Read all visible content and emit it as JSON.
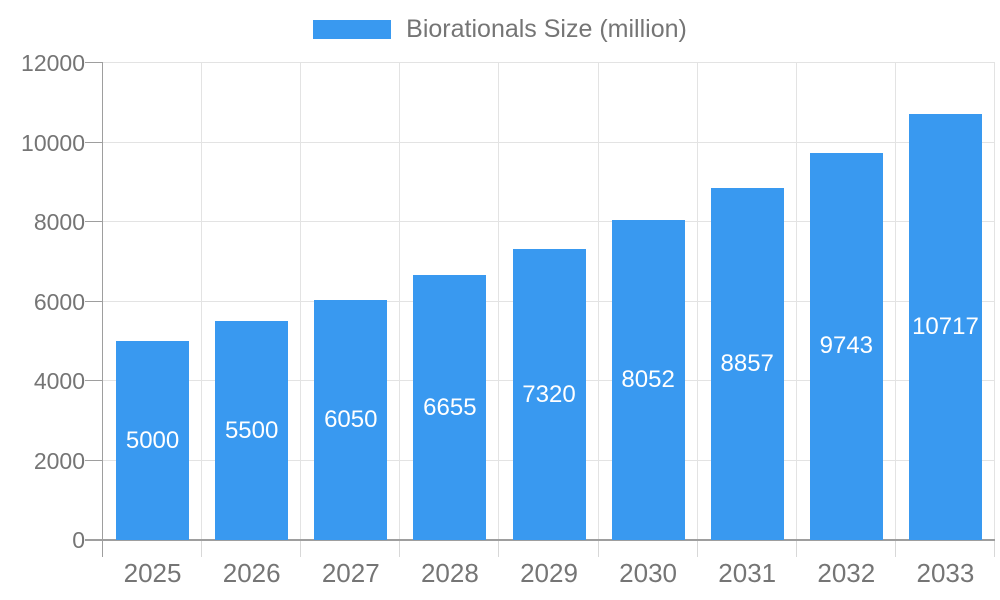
{
  "legend": {
    "label": "Biorationals Size (million)",
    "swatch_color": "#3999F0"
  },
  "chart_data": {
    "type": "bar",
    "title": "",
    "xlabel": "",
    "ylabel": "",
    "categories": [
      "2025",
      "2026",
      "2027",
      "2028",
      "2029",
      "2030",
      "2031",
      "2032",
      "2033"
    ],
    "series": [
      {
        "name": "Biorationals Size (million)",
        "values": [
          5000,
          5500,
          6050,
          6655,
          7320,
          8052,
          8857,
          9743,
          10717
        ]
      }
    ],
    "value_labels": [
      "5000",
      "5500",
      "6050",
      "6655",
      "7320",
      "8052",
      "8857",
      "9743",
      "10717"
    ],
    "ylim": [
      0,
      12000
    ],
    "yticks": [
      0,
      2000,
      4000,
      6000,
      8000,
      10000,
      12000
    ],
    "grid": true,
    "legend_position": "top-center",
    "bar_color": "#3999F0",
    "value_label_color": "#FFFFFF"
  },
  "colors": {
    "bar": "#3999F0",
    "grid_line": "#E3E3E3",
    "axis_line": "#9E9E9E",
    "minor_tick": "#D8D8D8",
    "axis_text": "#757575",
    "background": "#FFFFFF"
  }
}
